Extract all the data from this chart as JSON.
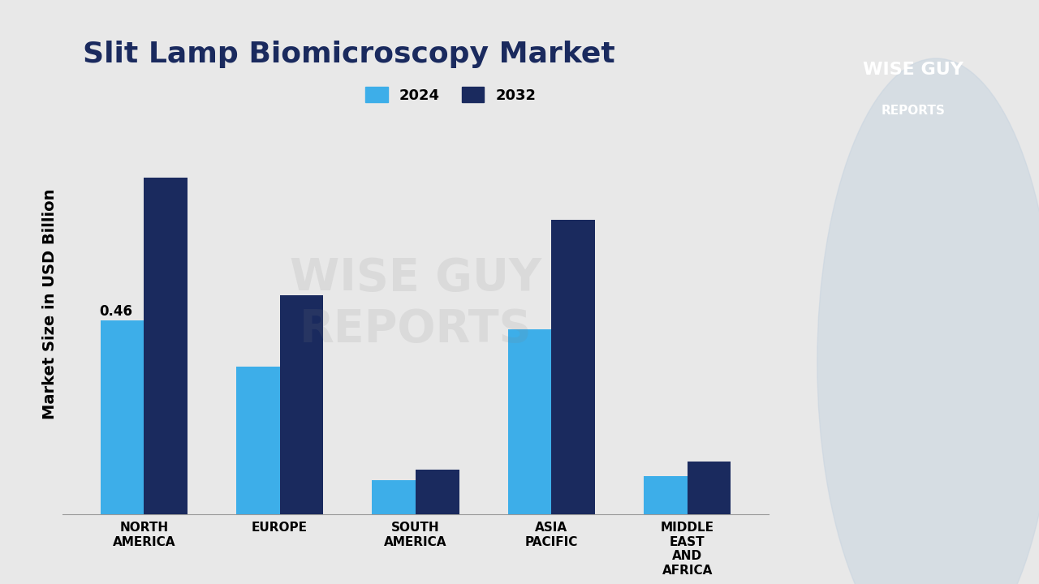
{
  "title": "Slit Lamp Biomicroscopy Market",
  "ylabel": "Market Size in USD Billion",
  "categories": [
    "NORTH\nAMERICA",
    "EUROPE",
    "SOUTH\nAMERICA",
    "ASIA\nPACIFIC",
    "MIDDLE\nEAST\nAND\nAFRICA"
  ],
  "values_2024": [
    0.46,
    0.35,
    0.08,
    0.44,
    0.09
  ],
  "values_2032": [
    0.8,
    0.52,
    0.105,
    0.7,
    0.125
  ],
  "color_2024": "#3daee9",
  "color_2032": "#1a2a5e",
  "annotation_label": "0.46",
  "annotation_index": 0,
  "bar_width": 0.32,
  "background_color": "#e8e8e8",
  "title_color": "#1a2a5e",
  "title_fontsize": 26,
  "ylabel_fontsize": 14,
  "tick_label_fontsize": 11,
  "legend_fontsize": 13,
  "annotation_fontsize": 12,
  "ylim": [
    0,
    1.0
  ],
  "right_panel_color": "#1a2a5e"
}
